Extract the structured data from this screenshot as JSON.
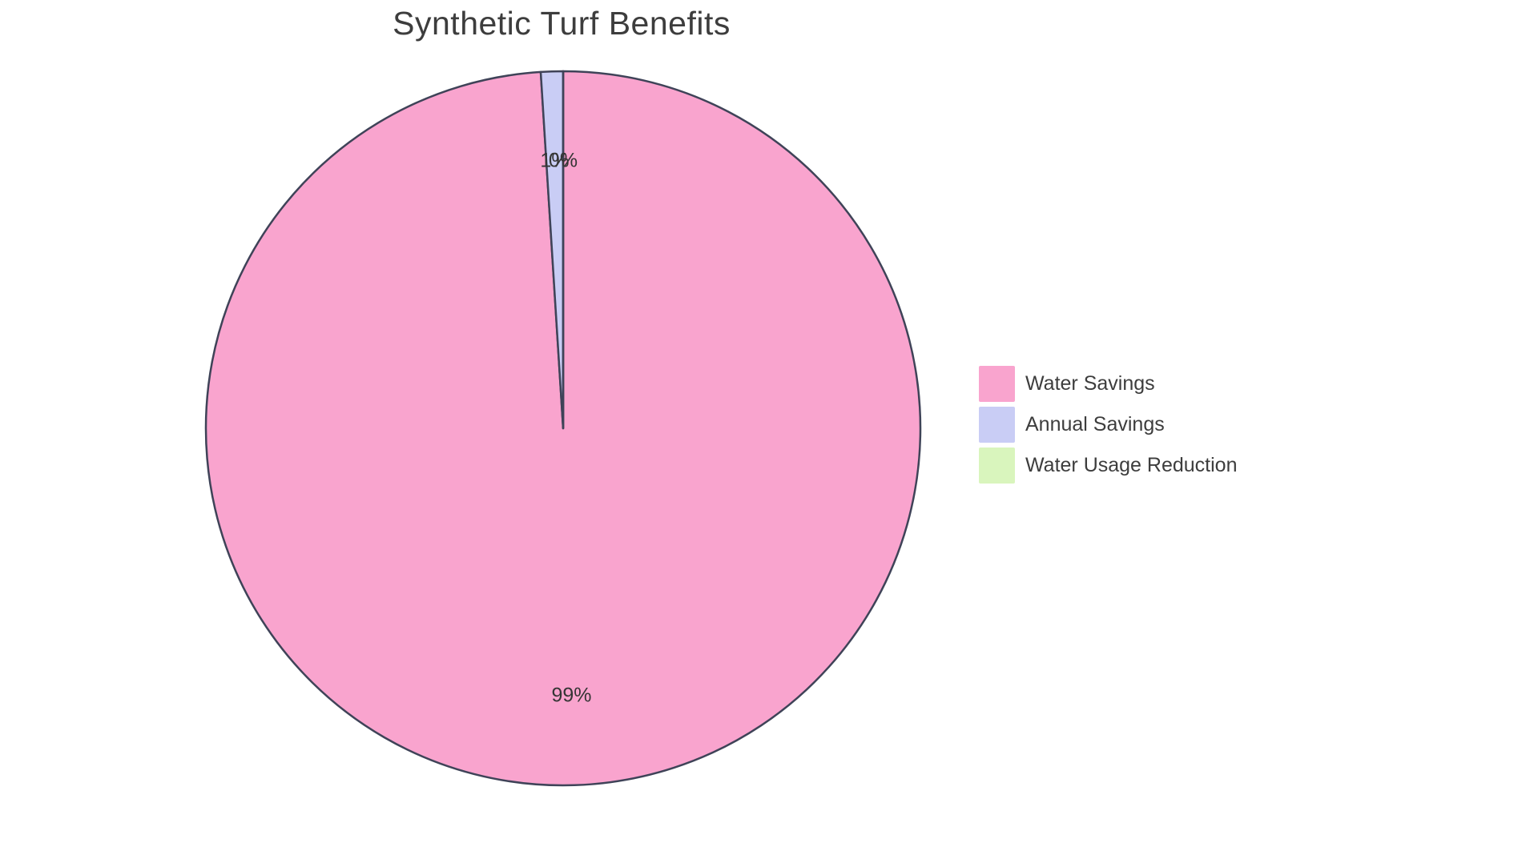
{
  "page": {
    "background_color": "#ffffff"
  },
  "chart_data": {
    "type": "pie",
    "title": "Synthetic Turf Benefits",
    "labels": [
      "Water Savings",
      "Annual Savings",
      "Water Usage Reduction"
    ],
    "values": [
      99,
      1,
      0
    ],
    "percent_labels": [
      "99%",
      "1%",
      "0%"
    ],
    "colors": [
      "#F9A4CE",
      "#C9CDF5",
      "#D9F5BD"
    ],
    "slice_border_color": "#3F4358",
    "slice_border_width": 2.5,
    "start_angle_deg": 0,
    "direction": "clockwise",
    "label_position": "inside",
    "legend_position": "right",
    "text_color": "#353535",
    "title_color": "#3d3d3d",
    "legend_text_color": "#3d3d3d"
  }
}
